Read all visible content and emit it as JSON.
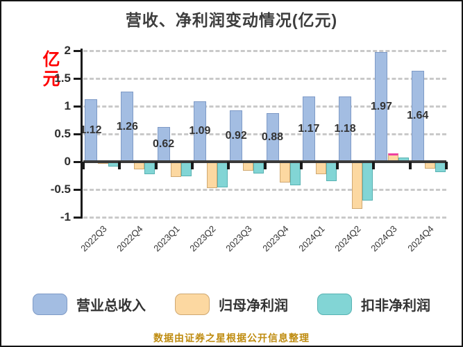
{
  "page": {
    "title": "营收、净利润变动情况(亿元)",
    "footer": "数据由证券之星根据公开信息整理"
  },
  "chart_data": {
    "type": "bar",
    "title": "营收、净利润变动情况(亿元)",
    "y_axis_label": "亿元",
    "y_axis_label_color": "#ff0000",
    "ylim": [
      -1,
      2
    ],
    "yticks": [
      "2",
      "1.5",
      "1",
      "0.5",
      "0",
      "-0.5",
      "-1"
    ],
    "grid": "dashed-horizontal",
    "legend_position": "bottom",
    "categories": [
      "2022Q3",
      "2022Q4",
      "2023Q1",
      "2023Q2",
      "2023Q3",
      "2023Q4",
      "2024Q1",
      "2024Q2",
      "2024Q3",
      "2024Q4"
    ],
    "series": [
      {
        "name": "营业总收入",
        "color": "#a3bde2",
        "border_color": "#7e9ac6",
        "values": [
          1.12,
          1.26,
          0.62,
          1.09,
          0.92,
          0.88,
          1.17,
          1.18,
          1.97,
          1.64
        ],
        "data_labels": [
          "1.12",
          "1.26",
          "0.62",
          "1.09",
          "0.92",
          "0.88",
          "1.17",
          "1.18",
          "1.97",
          "1.64"
        ]
      },
      {
        "name": "归母净利润",
        "color": "#fcd8a1",
        "border_color": "#cfa871",
        "values": [
          -0.03,
          -0.13,
          -0.26,
          -0.46,
          -0.15,
          -0.36,
          -0.21,
          -0.84,
          0.15,
          -0.11
        ]
      },
      {
        "name": "扣非净利润",
        "color": "#82d5d5",
        "border_color": "#58b2b2",
        "values": [
          -0.08,
          -0.21,
          -0.25,
          -0.45,
          -0.2,
          -0.41,
          -0.34,
          -0.69,
          0.08,
          -0.18
        ]
      }
    ],
    "highlight": {
      "series_index": 1,
      "category_index": 8,
      "color": "#ee3fa0"
    },
    "colors": {
      "grid": "#c9c9c9",
      "zero_line": "#3a3a3a",
      "axis": "#1a1a1a",
      "tick_label": "#2e2e2e",
      "bar_label": "#333333"
    }
  }
}
